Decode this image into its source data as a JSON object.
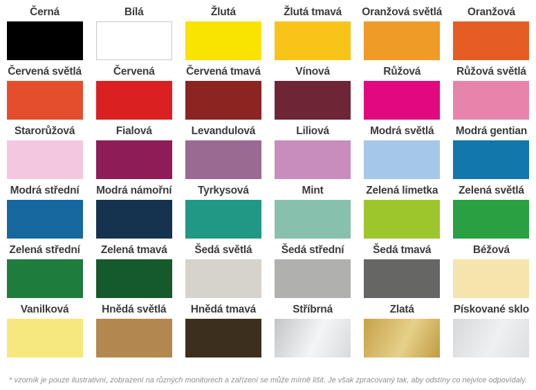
{
  "chart_data": {
    "type": "table",
    "grid": {
      "rows": 6,
      "columns": 6
    },
    "columns": [
      "name",
      "hex"
    ],
    "swatches": [
      {
        "name": "Černá",
        "hex": "#000000"
      },
      {
        "name": "Bílá",
        "hex": "#ffffff",
        "border": "#c8c8c8"
      },
      {
        "name": "Žlutá",
        "hex": "#f9e300"
      },
      {
        "name": "Žlutá tmavá",
        "hex": "#f8c41a"
      },
      {
        "name": "Oranžová světlá",
        "hex": "#ef9b27"
      },
      {
        "name": "Oranžová",
        "hex": "#e55d25"
      },
      {
        "name": "Červená světlá",
        "hex": "#e54e2d"
      },
      {
        "name": "Červená",
        "hex": "#da2020"
      },
      {
        "name": "Červená tmavá",
        "hex": "#8c2422"
      },
      {
        "name": "Vínová",
        "hex": "#6e2637"
      },
      {
        "name": "Růžová",
        "hex": "#e20980"
      },
      {
        "name": "Růžová světlá",
        "hex": "#e884ab"
      },
      {
        "name": "Starorůžová",
        "hex": "#f3c7dd"
      },
      {
        "name": "Fialová",
        "hex": "#8e1c57"
      },
      {
        "name": "Levandulová",
        "hex": "#9a6a93"
      },
      {
        "name": "Liliová",
        "hex": "#c98dbb"
      },
      {
        "name": "Modrá světlá",
        "hex": "#a5c8ea"
      },
      {
        "name": "Modrá gentian",
        "hex": "#1277ab"
      },
      {
        "name": "Modrá střední",
        "hex": "#17689f"
      },
      {
        "name": "Modrá námořní",
        "hex": "#15334f"
      },
      {
        "name": "Tyrkysová",
        "hex": "#219886"
      },
      {
        "name": "Mint",
        "hex": "#87c1ad"
      },
      {
        "name": "Zelená limetka",
        "hex": "#9dc62c"
      },
      {
        "name": "Zelená světlá",
        "hex": "#2aa042"
      },
      {
        "name": "Zelená střední",
        "hex": "#1e7c3c"
      },
      {
        "name": "Zelená tmavá",
        "hex": "#155a2c"
      },
      {
        "name": "Šedá světlá",
        "hex": "#d5d3cc"
      },
      {
        "name": "Šedá střední",
        "hex": "#b0b0ae"
      },
      {
        "name": "Šedá tmavá",
        "hex": "#666664"
      },
      {
        "name": "Béžová",
        "hex": "#f6e4ad"
      },
      {
        "name": "Vanilková",
        "hex": "#f6e77f"
      },
      {
        "name": "Hnědá světlá",
        "hex": "#b28850"
      },
      {
        "name": "Hnědá tmavá",
        "hex": "#3c2f1e"
      },
      {
        "name": "Stříbrná",
        "hex": "#d9dbdd",
        "gradient": [
          "#c2c5c8",
          "#f4f5f6",
          "#d8dadc"
        ]
      },
      {
        "name": "Zlatá",
        "hex": "#cfae58",
        "gradient": [
          "#c6a24a",
          "#e6d089",
          "#c09c42"
        ]
      },
      {
        "name": "Pískované sklo",
        "hex": "#e2e4e6",
        "gradient": [
          "#d6d8da",
          "#eff0f1",
          "#dddfe1"
        ]
      }
    ]
  },
  "footer": {
    "text": "* vzorník je pouze ilustrativní, zobrazení na různých monitorech a zařízení se může mírně lišit. Je však zpracovaný tak, aby odstíny co nejvíce odpovídaly."
  }
}
